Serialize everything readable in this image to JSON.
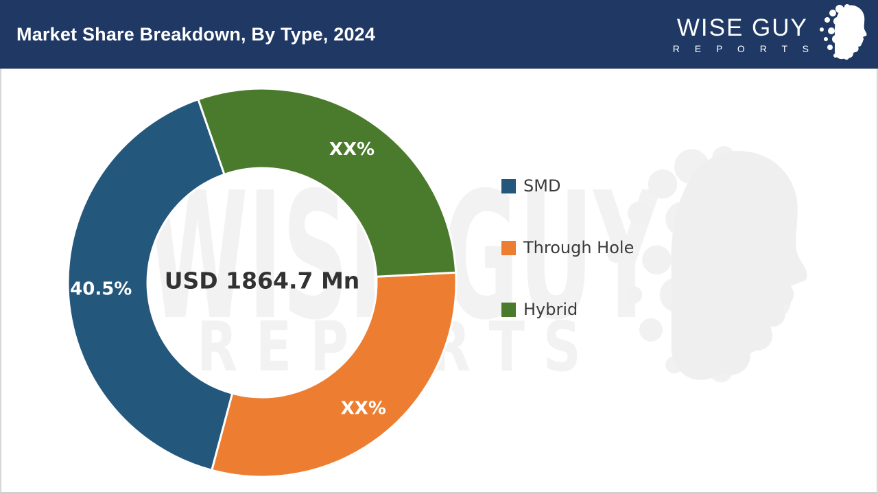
{
  "header": {
    "title": "Market Share Breakdown, By Type, 2024",
    "bg_color": "#1F3864",
    "logo": {
      "brand": "WISE GUY",
      "sub": "R E P O R T S"
    }
  },
  "watermark": {
    "line1": "WISE GUY",
    "line2": "R E P O R T S"
  },
  "chart_data": {
    "type": "pie",
    "donut": true,
    "title": "Market Share Breakdown, By Type, 2024",
    "center_label": "USD 1864.7 Mn",
    "legend_position": "right",
    "start_angle_deg": 340.8,
    "direction": "counterclockwise",
    "inner_radius_ratio": 0.59,
    "segments": [
      {
        "label": "SMD",
        "display_value": "40.5%",
        "value_pct": 40.5,
        "color": "#24577C"
      },
      {
        "label": "Through Hole",
        "display_value": "XX%",
        "value_pct": 30.0,
        "color": "#ED7D31"
      },
      {
        "label": "Hybrid",
        "display_value": "XX%",
        "value_pct": 29.5,
        "color": "#4A7A2B"
      }
    ]
  }
}
